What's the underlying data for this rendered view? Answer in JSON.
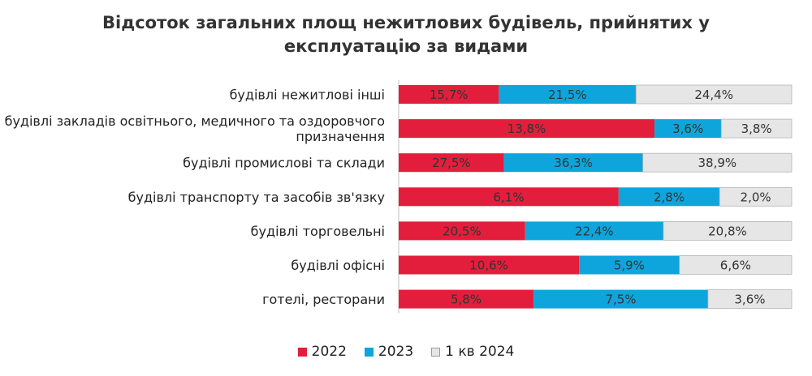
{
  "chart_data": {
    "type": "bar",
    "stacked": "percent",
    "orientation": "horizontal",
    "title": [
      "Відсоток загальних площ нежитлових будівель, прийнятих у",
      "експлуатацію за видами"
    ],
    "categories": [
      [
        "будівлі нежитлові інші"
      ],
      [
        "будівлі закладів освітнього, медичного та оздоровчого",
        "призначення"
      ],
      [
        "будівлі промислові та склади"
      ],
      [
        "будівлі транспорту та засобів зв'язку"
      ],
      [
        "будівлі торговельні"
      ],
      [
        "будівлі офісні"
      ],
      [
        "готелі, ресторани"
      ]
    ],
    "series": [
      {
        "name": "2022",
        "values": [
          15.7,
          13.8,
          27.5,
          6.1,
          20.5,
          10.6,
          5.8
        ],
        "labels": [
          "15,7%",
          "13,8%",
          "27,5%",
          "6,1%",
          "20,5%",
          "10,6%",
          "5,8%"
        ],
        "color": "#e31e3c"
      },
      {
        "name": "2023",
        "values": [
          21.5,
          3.6,
          36.3,
          2.8,
          22.4,
          5.9,
          7.5
        ],
        "labels": [
          "21,5%",
          "3,6%",
          "36,3%",
          "2,8%",
          "22,4%",
          "5,9%",
          "7,5%"
        ],
        "color": "#0ea5dc"
      },
      {
        "name": "1 кв 2024",
        "values": [
          24.4,
          3.8,
          38.9,
          2.0,
          20.8,
          6.6,
          3.6
        ],
        "labels": [
          "24,4%",
          "3,8%",
          "38,9%",
          "2,0%",
          "20,8%",
          "6,6%",
          "3,6%"
        ],
        "color": "#e6e6e6"
      }
    ],
    "legend_position": "bottom",
    "grid": false
  }
}
